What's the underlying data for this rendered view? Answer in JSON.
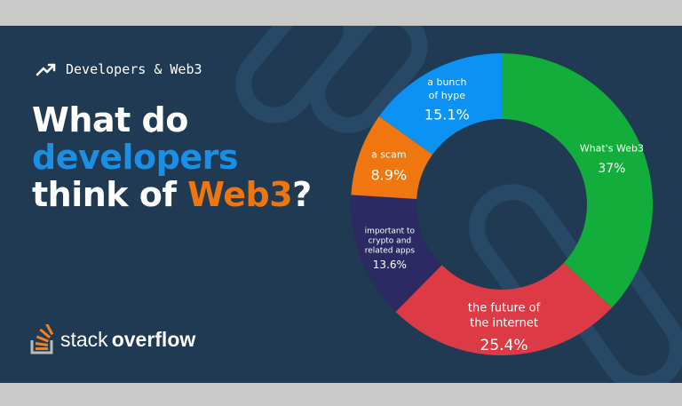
{
  "header": {
    "kicker": "Developers & Web3",
    "kicker_icon": "trending-up-icon"
  },
  "headline": {
    "line1": "What do",
    "line2": "developers",
    "line3_prefix": "think of ",
    "line3_highlight": "Web3",
    "line3_suffix": "?"
  },
  "brand": {
    "word_a": "stack",
    "word_b": "overflow",
    "icon": "stackoverflow-logo-icon"
  },
  "colors": {
    "background": "#1f3a52",
    "accent_blue": "#1a8fe6",
    "accent_orange": "#f2740d"
  },
  "chart_data": {
    "type": "pie",
    "style": "donut",
    "slices": [
      {
        "label": "What's Web3",
        "value": 37,
        "value_label": "37%",
        "color": "#12ad3a"
      },
      {
        "label": "the future of the internet",
        "value": 25.4,
        "value_label": "25.4%",
        "color": "#dc3a45"
      },
      {
        "label": "important to crypto and related apps",
        "value": 13.6,
        "value_label": "13.6%",
        "color": "#2b2a63"
      },
      {
        "label": "a scam",
        "value": 8.9,
        "value_label": "8.9%",
        "color": "#f0760f"
      },
      {
        "label": "a bunch of hype",
        "value": 15.1,
        "value_label": "15.1%",
        "color": "#0b92f2"
      }
    ]
  }
}
